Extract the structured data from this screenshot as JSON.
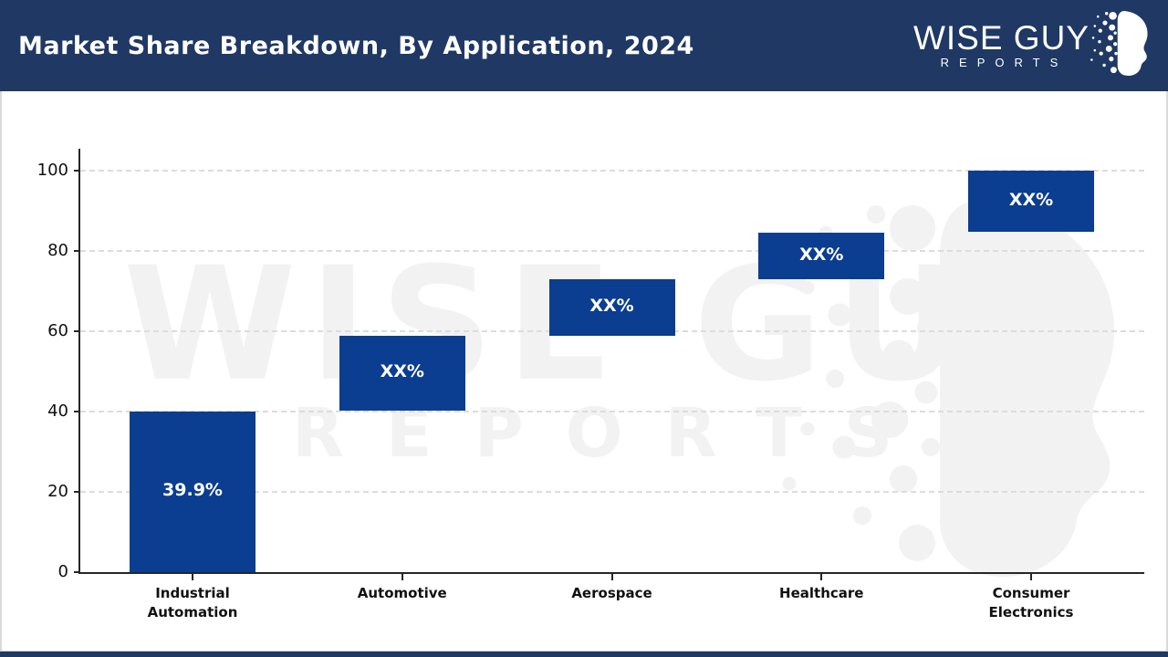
{
  "header": {
    "title": "Market Share Breakdown, By Application, 2024",
    "logo": {
      "line1": "WISE GUY",
      "line2": "REPORTS",
      "icon": "dotted-head-icon"
    }
  },
  "watermark": {
    "line1": "WISE GUY",
    "line2": "REPORTS",
    "icon": "dotted-head-watermark-icon"
  },
  "chart_data": {
    "type": "bar",
    "subtype": "waterfall",
    "title": "Market Share Breakdown, By Application, 2024",
    "categories": [
      "Industrial\nAutomation",
      "Automotive",
      "Aerospace",
      "Healthcare",
      "Consumer\nElectronics"
    ],
    "segments": [
      {
        "category": "Industrial Automation",
        "start": 0,
        "end": 39.9,
        "label": "39.9%"
      },
      {
        "category": "Automotive",
        "start": 40.2,
        "end": 58.7,
        "label": "XX%"
      },
      {
        "category": "Aerospace",
        "start": 58.7,
        "end": 72.8,
        "label": "XX%"
      },
      {
        "category": "Healthcare",
        "start": 72.8,
        "end": 84.4,
        "label": "XX%"
      },
      {
        "category": "Consumer Electronics",
        "start": 84.6,
        "end": 99.8,
        "label": "XX%"
      }
    ],
    "yticks": [
      0,
      20,
      40,
      60,
      80,
      100
    ],
    "ylim": [
      0,
      105
    ],
    "xlabel": "",
    "ylabel": "",
    "grid": "horizontal-dashed",
    "legend": "none",
    "bar_color": "#0b3d90",
    "bar_label_color": "#ffffff"
  },
  "colors": {
    "header_bg": "#1f3864",
    "footer_bg": "#1f3864",
    "bar": "#0b3d90",
    "grid": "#dcdcdc",
    "axis": "#262626",
    "watermark": "#f2f2f2"
  }
}
